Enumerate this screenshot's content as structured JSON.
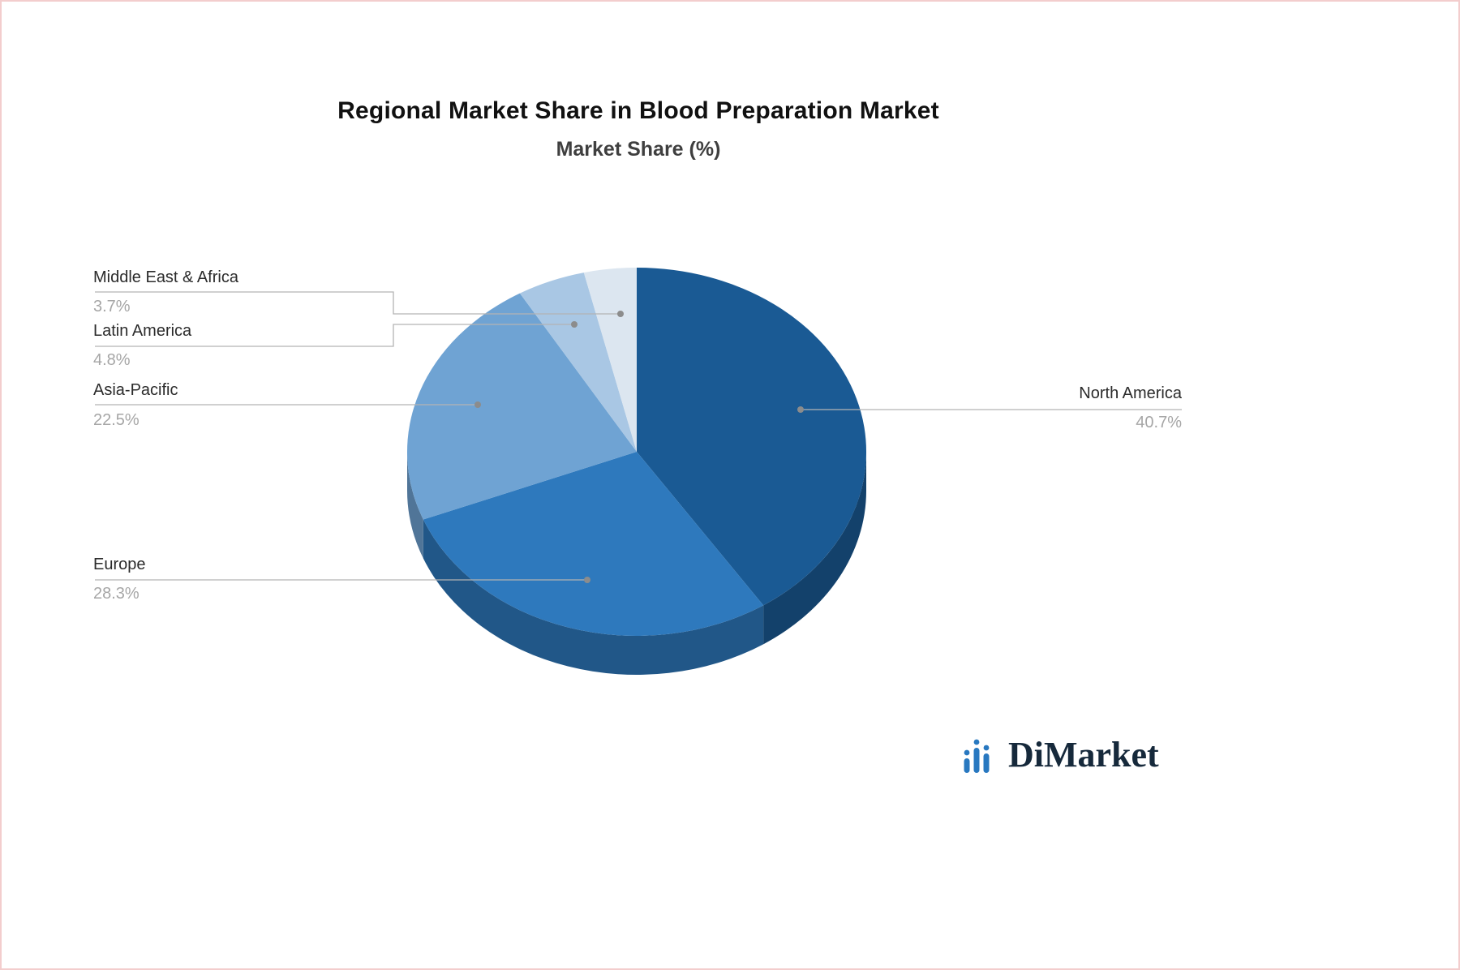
{
  "page": {
    "title": "Regional Market Share in Blood Preparation Market",
    "subtitle": "Market Share (%)"
  },
  "chart_data": {
    "type": "pie",
    "title": "Regional Market Share in Blood Preparation Market",
    "subtitle": "Market Share (%)",
    "unit": "%",
    "total": 100,
    "start_angle_deg": 0,
    "direction": "clockwise",
    "style": "3d",
    "legend_position": "none",
    "label_style": "leader-lines",
    "slices": [
      {
        "name": "North America",
        "value": 40.7,
        "label": "40.7%",
        "color": "#1a5a94"
      },
      {
        "name": "Europe",
        "value": 28.3,
        "label": "28.3%",
        "color": "#2e79bd"
      },
      {
        "name": "Asia-Pacific",
        "value": 22.5,
        "label": "22.5%",
        "color": "#6fa3d3"
      },
      {
        "name": "Latin America",
        "value": 4.8,
        "label": "4.8%",
        "color": "#a9c7e4"
      },
      {
        "name": "Middle East & Africa",
        "value": 3.7,
        "label": "3.7%",
        "color": "#dce6f0"
      }
    ],
    "leader_line_color": "#b3b3b3",
    "marker_color": "#8c8c8c"
  },
  "logo": {
    "text": "DiMarket",
    "icon": "bar-chart-icon",
    "icon_color": "#2878c0",
    "text_color": "#16293b"
  }
}
